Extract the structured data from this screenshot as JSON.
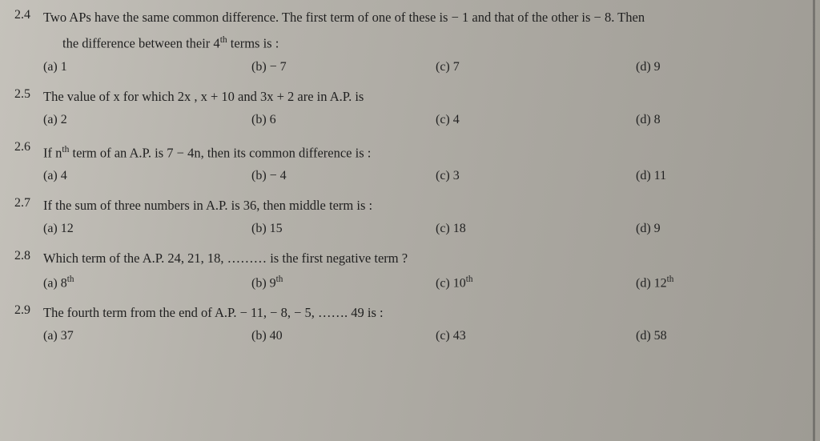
{
  "questions": [
    {
      "num": "2.4",
      "stem_line1": "Two APs have the same common difference. The first term of one of these is − 1 and that of the other is − 8. Then",
      "stem_line2": "the difference between their 4",
      "stem_sup": "th",
      "stem_line2_tail": " terms is :",
      "opts": {
        "a": "(a) 1",
        "b": "(b) − 7",
        "c": "(c) 7",
        "d": "(d) 9"
      }
    },
    {
      "num": "2.5",
      "stem_line1": "The value of x for which 2x , x + 10 and 3x + 2 are in A.P. is",
      "opts": {
        "a": "(a) 2",
        "b": "(b) 6",
        "c": "(c) 4",
        "d": "(d) 8"
      }
    },
    {
      "num": "2.6",
      "stem_pre": "If n",
      "stem_sup": "th",
      "stem_post": " term of an A.P. is 7 − 4n, then its common difference is :",
      "opts": {
        "a": "(a) 4",
        "b": "(b) − 4",
        "c": "(c) 3",
        "d": "(d) 11"
      }
    },
    {
      "num": "2.7",
      "stem_line1": "If the sum of three numbers in A.P. is 36, then middle term is :",
      "opts": {
        "a": "(a) 12",
        "b": "(b) 15",
        "c": "(c) 18",
        "d": "(d) 9"
      }
    },
    {
      "num": "2.8",
      "stem_line1": "Which term of the A.P. 24, 21, 18, ……… is the first negative term ?",
      "opts": {
        "a_pre": "(a) 8",
        "a_sup": "th",
        "b_pre": "(b) 9",
        "b_sup": "th",
        "c_pre": "(c) 10",
        "c_sup": "th",
        "d_pre": "(d) 12",
        "d_sup": "th"
      }
    },
    {
      "num": "2.9",
      "stem_line1": "The fourth term from the end of A.P. − 11, − 8, − 5, ……. 49 is :",
      "opts": {
        "a": "(a) 37",
        "b": "(b) 40",
        "c": "(c) 43",
        "d": "(d) 58"
      }
    }
  ]
}
